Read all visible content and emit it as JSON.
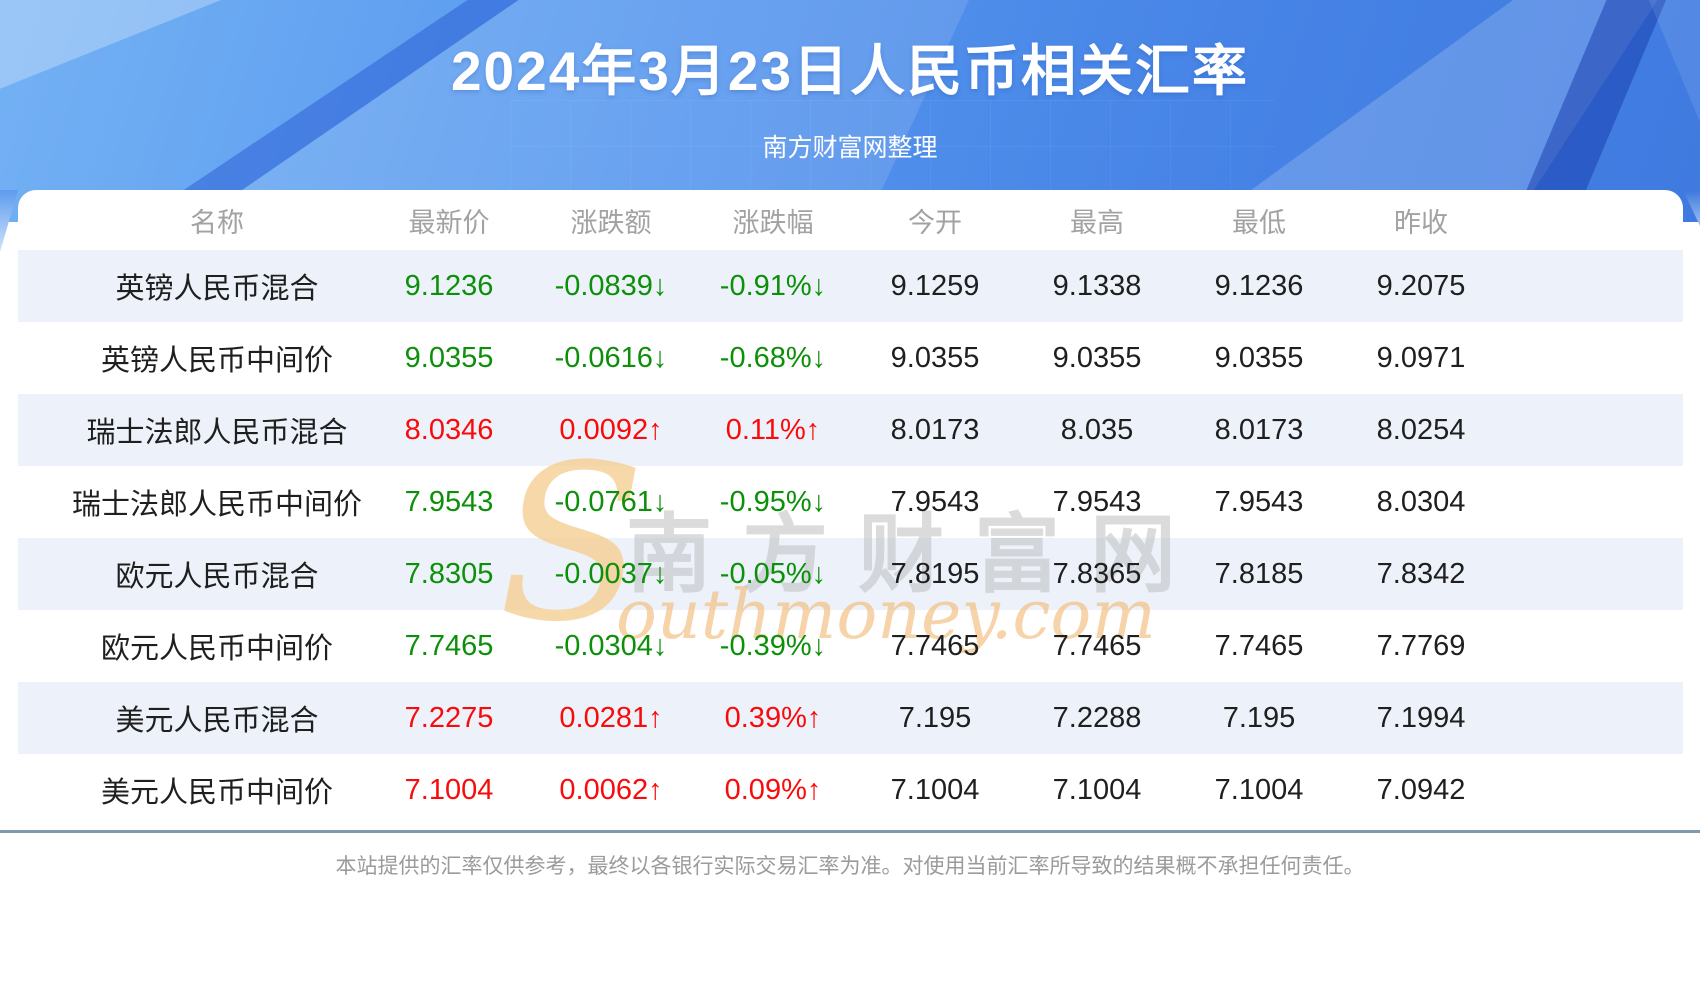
{
  "page": {
    "title": "2024年3月23日人民币相关汇率",
    "subtitle": "南方财富网整理",
    "disclaimer": "本站提供的汇率仅供参考，最终以各银行实际交易汇率为准。对使用当前汇率所导致的结果概不承担任何责任。"
  },
  "watermark": {
    "initial": "S",
    "cn": "南方财富网",
    "en": "outhmoney.com"
  },
  "colors": {
    "up": "#f90b0b",
    "down": "#0d9009",
    "stripe": "#edf2fa",
    "divider": "#8199ad"
  },
  "table": {
    "columns": [
      "名称",
      "最新价",
      "涨跌额",
      "涨跌幅",
      "今开",
      "最高",
      "最低",
      "昨收"
    ],
    "rows": [
      {
        "name": "英镑人民币混合",
        "latest": "9.1236",
        "change": "-0.0839↓",
        "change_pct": "-0.91%↓",
        "open": "9.1259",
        "high": "9.1338",
        "low": "9.1236",
        "prev_close": "9.2075",
        "direction": "down"
      },
      {
        "name": "英镑人民币中间价",
        "latest": "9.0355",
        "change": "-0.0616↓",
        "change_pct": "-0.68%↓",
        "open": "9.0355",
        "high": "9.0355",
        "low": "9.0355",
        "prev_close": "9.0971",
        "direction": "down"
      },
      {
        "name": "瑞士法郎人民币混合",
        "latest": "8.0346",
        "change": "0.0092↑",
        "change_pct": "0.11%↑",
        "open": "8.0173",
        "high": "8.035",
        "low": "8.0173",
        "prev_close": "8.0254",
        "direction": "up"
      },
      {
        "name": "瑞士法郎人民币中间价",
        "latest": "7.9543",
        "change": "-0.0761↓",
        "change_pct": "-0.95%↓",
        "open": "7.9543",
        "high": "7.9543",
        "low": "7.9543",
        "prev_close": "8.0304",
        "direction": "down"
      },
      {
        "name": "欧元人民币混合",
        "latest": "7.8305",
        "change": "-0.0037↓",
        "change_pct": "-0.05%↓",
        "open": "7.8195",
        "high": "7.8365",
        "low": "7.8185",
        "prev_close": "7.8342",
        "direction": "down"
      },
      {
        "name": "欧元人民币中间价",
        "latest": "7.7465",
        "change": "-0.0304↓",
        "change_pct": "-0.39%↓",
        "open": "7.7465",
        "high": "7.7465",
        "low": "7.7465",
        "prev_close": "7.7769",
        "direction": "down"
      },
      {
        "name": "美元人民币混合",
        "latest": "7.2275",
        "change": "0.0281↑",
        "change_pct": "0.39%↑",
        "open": "7.195",
        "high": "7.2288",
        "low": "7.195",
        "prev_close": "7.1994",
        "direction": "up"
      },
      {
        "name": "美元人民币中间价",
        "latest": "7.1004",
        "change": "0.0062↑",
        "change_pct": "0.09%↑",
        "open": "7.1004",
        "high": "7.1004",
        "low": "7.1004",
        "prev_close": "7.0942",
        "direction": "up"
      }
    ]
  },
  "chart_data": {
    "type": "table",
    "title": "2024年3月23日人民币相关汇率",
    "columns": [
      "名称",
      "最新价",
      "涨跌额",
      "涨跌幅",
      "今开",
      "最高",
      "最低",
      "昨收"
    ],
    "rows": [
      [
        "英镑人民币混合",
        9.1236,
        -0.0839,
        "-0.91%",
        9.1259,
        9.1338,
        9.1236,
        9.2075
      ],
      [
        "英镑人民币中间价",
        9.0355,
        -0.0616,
        "-0.68%",
        9.0355,
        9.0355,
        9.0355,
        9.0971
      ],
      [
        "瑞士法郎人民币混合",
        8.0346,
        0.0092,
        "0.11%",
        8.0173,
        8.035,
        8.0173,
        8.0254
      ],
      [
        "瑞士法郎人民币中间价",
        7.9543,
        -0.0761,
        "-0.95%",
        7.9543,
        7.9543,
        7.9543,
        8.0304
      ],
      [
        "欧元人民币混合",
        7.8305,
        -0.0037,
        "-0.05%",
        7.8195,
        7.8365,
        7.8185,
        7.8342
      ],
      [
        "欧元人民币中间价",
        7.7465,
        -0.0304,
        "-0.39%",
        7.7465,
        7.7465,
        7.7465,
        7.7769
      ],
      [
        "美元人民币混合",
        7.2275,
        0.0281,
        "0.39%",
        7.195,
        7.2288,
        7.195,
        7.1994
      ],
      [
        "美元人民币中间价",
        7.1004,
        0.0062,
        "0.09%",
        7.1004,
        7.1004,
        7.1004,
        7.0942
      ]
    ]
  }
}
